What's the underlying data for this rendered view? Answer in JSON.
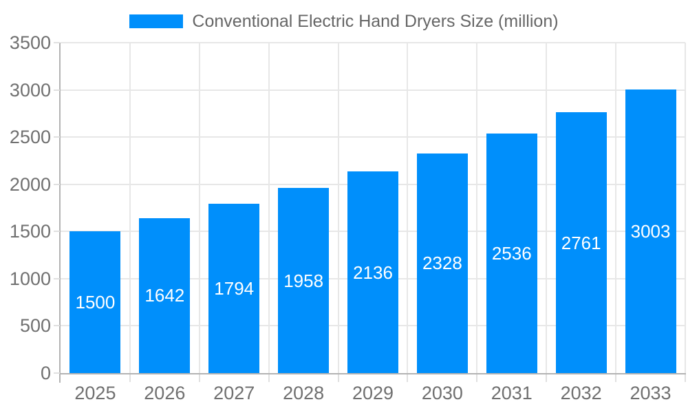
{
  "legend": {
    "label": "Conventional Electric Hand Dryers Size (million)"
  },
  "chart_data": {
    "type": "bar",
    "title": "Conventional Electric Hand Dryers Size (million)",
    "categories": [
      "2025",
      "2026",
      "2027",
      "2028",
      "2029",
      "2030",
      "2031",
      "2032",
      "2033"
    ],
    "series": [
      {
        "name": "Conventional Electric Hand Dryers Size (million)",
        "values": [
          1500,
          1642,
          1794,
          1958,
          2136,
          2328,
          2536,
          2761,
          3003
        ]
      }
    ],
    "data_labels": [
      "1500",
      "1642",
      "1794",
      "1958",
      "2136",
      "2328",
      "2536",
      "2761",
      "3003"
    ],
    "xlabel": "",
    "ylabel": "",
    "ylim": [
      0,
      3500
    ],
    "ytick_interval": 500,
    "yticks": [
      "0",
      "500",
      "1000",
      "1500",
      "2000",
      "2500",
      "3000",
      "3500"
    ],
    "grid": true,
    "legend_position": "top",
    "data_label_position": "inside-center"
  },
  "colors": {
    "bar": "#008FFB",
    "grid": "#e7e7e7",
    "axis_line": "#b3b3b3",
    "tick": "#e0e0e0",
    "axis_text": "#707070",
    "legend_text": "#666666",
    "data_label_text": "#ffffff",
    "background": "#ffffff"
  }
}
